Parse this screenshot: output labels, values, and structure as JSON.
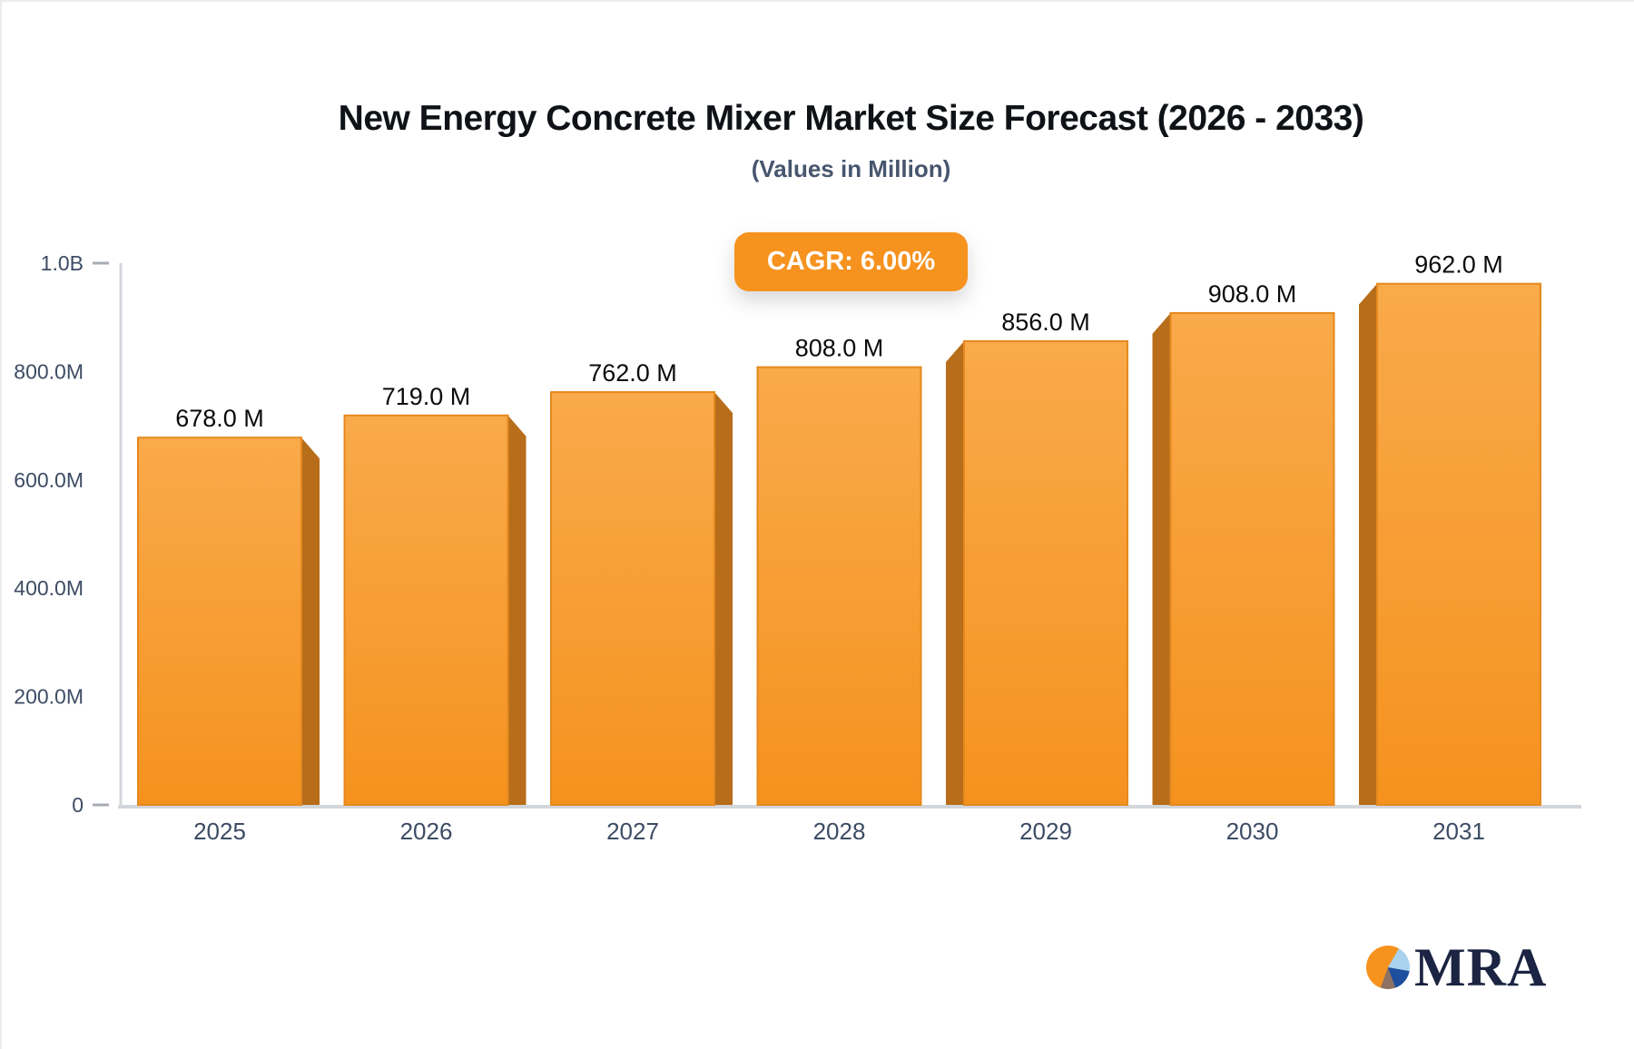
{
  "title": "New Energy Concrete Mixer Market Size Forecast (2026 - 2033)",
  "subtitle": "(Values in Million)",
  "cagr_badge": "CAGR: 6.00%",
  "logo": {
    "text": "MRA",
    "icon": "pie-chart-logo-icon"
  },
  "chart_data": {
    "type": "bar",
    "title": "New Energy Concrete Mixer Market Size Forecast (2026 - 2033)",
    "subtitle": "(Values in Million)",
    "cagr": "6.00%",
    "categories": [
      "2025",
      "2026",
      "2027",
      "2028",
      "2029",
      "2030",
      "2031"
    ],
    "values": [
      678,
      719,
      762,
      808,
      856,
      908,
      962
    ],
    "value_labels": [
      "678.0 M",
      "719.0 M",
      "762.0 M",
      "808.0 M",
      "856.0 M",
      "908.0 M",
      "962.0 M"
    ],
    "ylim": [
      0,
      1000
    ],
    "y_ticks": [
      {
        "label": "1.0B",
        "value": 1000,
        "dash": true
      },
      {
        "label": "800.0M",
        "value": 800,
        "dash": false
      },
      {
        "label": "600.0M",
        "value": 600,
        "dash": false
      },
      {
        "label": "400.0M",
        "value": 400,
        "dash": false
      },
      {
        "label": "200.0M",
        "value": 200,
        "dash": false
      },
      {
        "label": "0",
        "value": 0,
        "dash": true
      }
    ],
    "grid": false,
    "legend": null,
    "style_3d": "side face toward center, no side on middle bar",
    "colors": {
      "bar_top": "#f9aa4b",
      "bar_bottom": "#f5921e",
      "bar_edge": "#e5891f",
      "bar_side": "#b76d1a",
      "axis": "#d3d6db",
      "tick": "#a7adb5",
      "label": "#3d4c64",
      "value_label": "#0b0b0b",
      "badge_bg": "#f6921e",
      "badge_text": "#ffffff",
      "logo_navy": "#1b2442"
    }
  }
}
